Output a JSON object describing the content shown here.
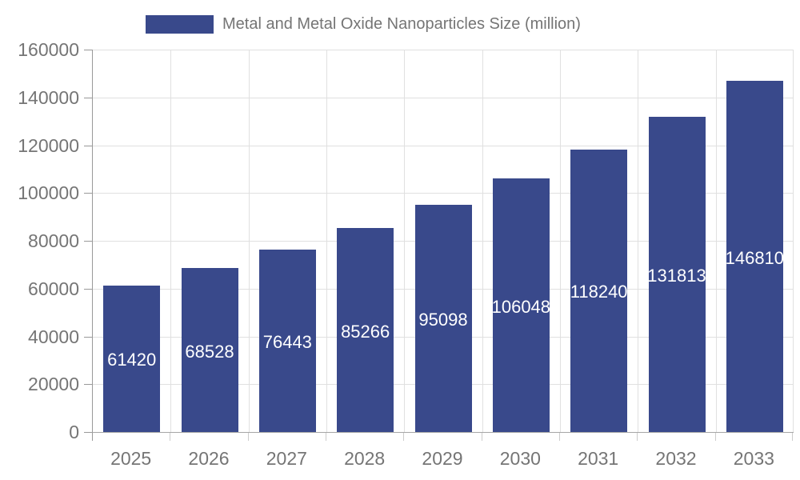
{
  "chart_data": {
    "type": "bar",
    "title": "Metal and Metal Oxide Nanoparticles Size (million)",
    "legend": {
      "entries": [
        "Metal and Metal Oxide Nanoparticles Size (million)"
      ],
      "position": "top"
    },
    "categories": [
      "2025",
      "2026",
      "2027",
      "2028",
      "2029",
      "2030",
      "2031",
      "2032",
      "2033"
    ],
    "series": [
      {
        "name": "Metal and Metal Oxide Nanoparticles Size (million)",
        "values": [
          61420,
          68528,
          76443,
          85266,
          95098,
          106048,
          118240,
          131813,
          146810
        ]
      }
    ],
    "xlabel": "",
    "ylabel": "",
    "ylim": [
      0,
      160000
    ],
    "yticks": [
      0,
      20000,
      40000,
      60000,
      80000,
      100000,
      120000,
      140000,
      160000
    ],
    "grid": true,
    "value_labels": "white text centered inside bars",
    "colors": {
      "bar": "#39498B",
      "value_label": "#ffffff",
      "axis_text": "#757575",
      "gridline": "#e0e0e0",
      "axis_line": "#999999",
      "background": "#ffffff"
    }
  }
}
